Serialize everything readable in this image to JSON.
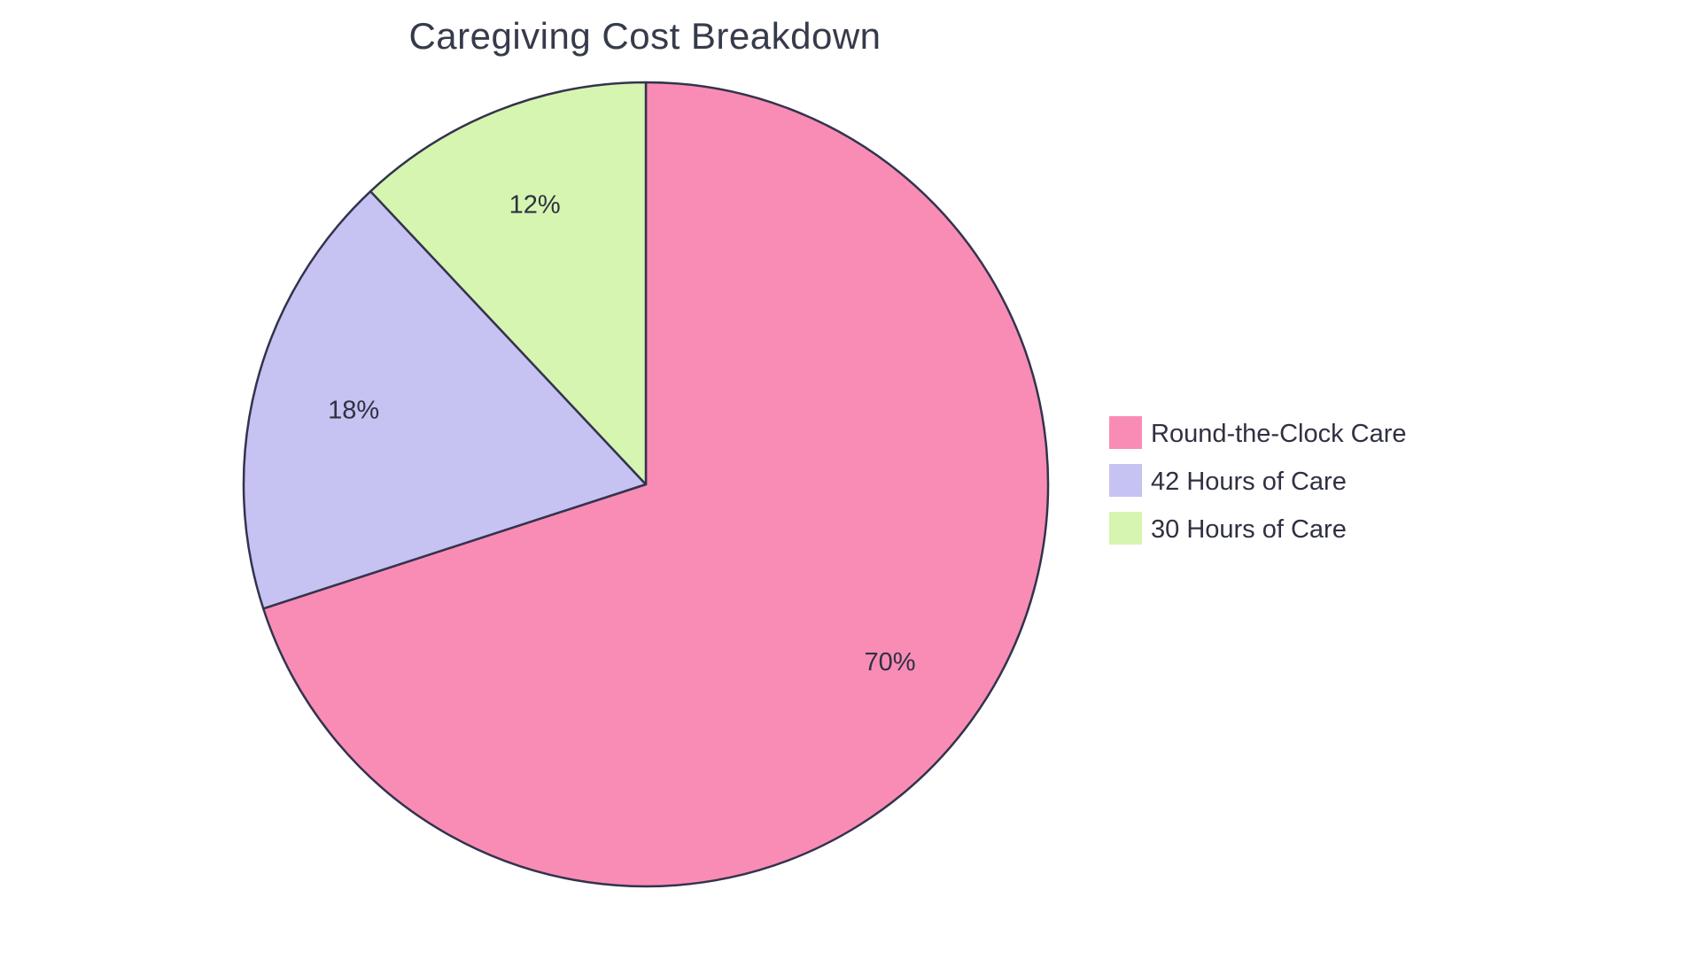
{
  "chart_data": {
    "type": "pie",
    "title": "Caregiving Cost Breakdown",
    "slices": [
      {
        "label": "Round-the-Clock Care",
        "value": 70,
        "pct_label": "70%",
        "color": "#F98CB5"
      },
      {
        "label": "42 Hours of Care",
        "value": 18,
        "pct_label": "18%",
        "color": "#C6C2F2"
      },
      {
        "label": "30 Hours of Care",
        "value": 12,
        "pct_label": "12%",
        "color": "#D6F5B0"
      }
    ],
    "start_angle_deg": 0,
    "direction": "clockwise",
    "legend_position": "right",
    "colors": {
      "stroke": "#33334D",
      "slice_label": "#2F3142",
      "legend_text": "#2F3142",
      "title_text": "#363B4A",
      "background": "#FFFFFF"
    }
  }
}
